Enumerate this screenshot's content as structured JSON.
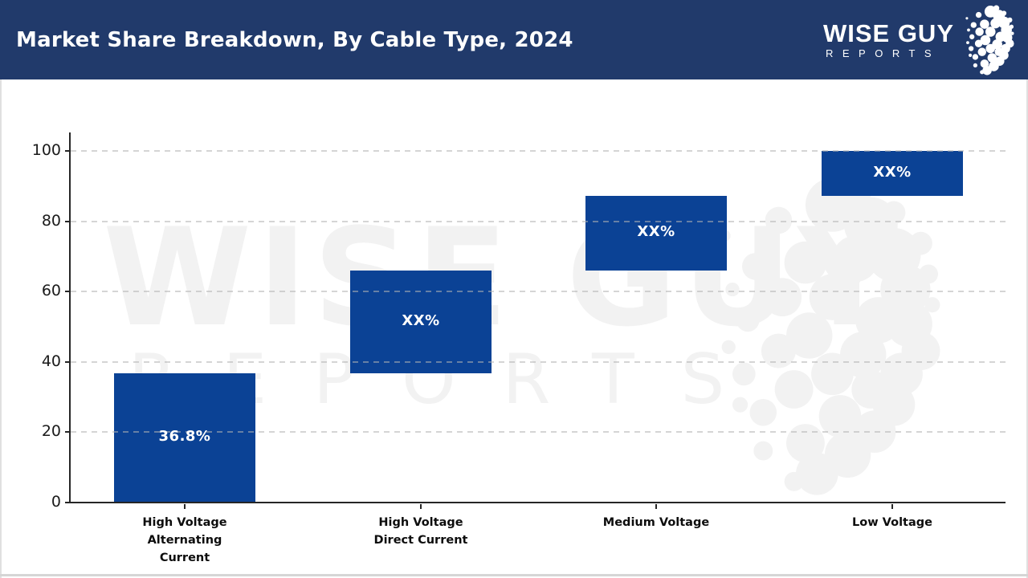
{
  "header": {
    "title": "Market Share Breakdown, By Cable Type, 2024",
    "logo": {
      "wordmark": "WISE GUY",
      "subtext": "REPORTS"
    }
  },
  "watermark": {
    "wordmark": "WISE GUY",
    "subtext": "REPORTS"
  },
  "colors": {
    "header_bg": "#213a6b",
    "bar": "#0b4295",
    "axis": "#262626",
    "grid_dash": "#d9d9d9",
    "watermark": "#f2f2f2"
  },
  "chart_data": {
    "type": "bar",
    "subtype": "waterfall-floating-bars",
    "title": "Market Share Breakdown, By Cable Type, 2024",
    "categories": [
      "High Voltage\nAlternating\nCurrent",
      "High Voltage\nDirect Current",
      "Medium Voltage",
      "Low Voltage"
    ],
    "bars": [
      {
        "category": "High Voltage Alternating Current",
        "start": 0,
        "end": 36.8,
        "label": "36.8%"
      },
      {
        "category": "High Voltage Direct Current",
        "start": 36.8,
        "end": 66.0,
        "label": "XX%"
      },
      {
        "category": "Medium Voltage",
        "start": 66.0,
        "end": 87.2,
        "label": "XX%"
      },
      {
        "category": "Low Voltage",
        "start": 87.2,
        "end": 100.0,
        "label": "XX%"
      }
    ],
    "xlabel": "",
    "ylabel": "",
    "ylim": [
      0,
      100
    ],
    "yticks": [
      0,
      20,
      40,
      60,
      80,
      100
    ],
    "grid": "horizontal dashed",
    "legend": "none"
  }
}
